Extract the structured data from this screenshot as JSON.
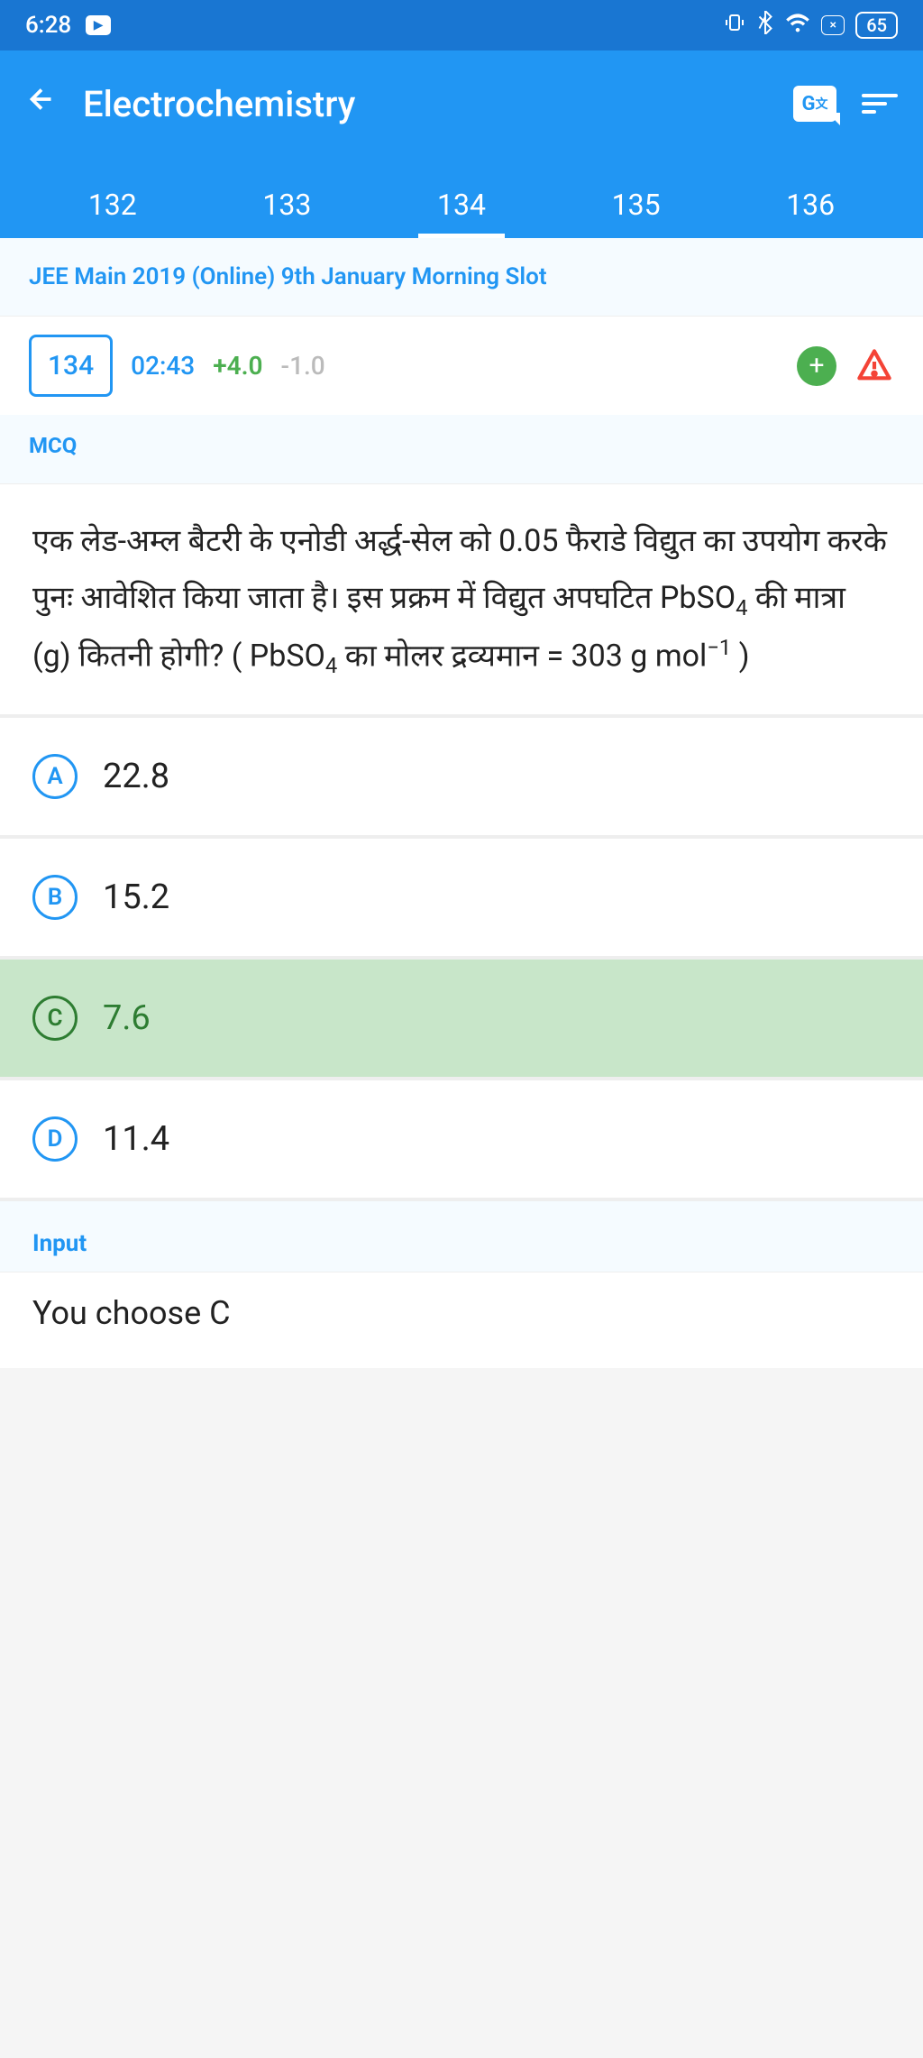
{
  "status": {
    "time": "6:28",
    "battery": "65"
  },
  "header": {
    "title": "Electrochemistry"
  },
  "tabs": {
    "items": [
      "132",
      "133",
      "134",
      "135",
      "136"
    ],
    "active_index": 2
  },
  "exam_info": "JEE Main 2019 (Online) 9th January Morning Slot",
  "question_meta": {
    "number": "134",
    "time": "02:43",
    "positive": "+4.0",
    "negative": "-1.0"
  },
  "mcq_label": "MCQ",
  "question_html": "एक लेड-अम्ल बैटरी के एनोडी अर्द्ध-सेल को 0.05 फैराडे विद्युत का उपयोग करके पुनः आवेशित किया जाता है। इस प्रक्रम में विद्युत अपघटित PbSO<sub>4</sub> की मात्रा (g) कितनी होगी? ( PbSO<sub>4</sub> का मोलर द्रव्यमान = 303 g mol<sup>−1</sup> )",
  "options": [
    {
      "letter": "A",
      "text": "22.8",
      "selected": false
    },
    {
      "letter": "B",
      "text": "15.2",
      "selected": false
    },
    {
      "letter": "C",
      "text": "7.6",
      "selected": true
    },
    {
      "letter": "D",
      "text": "11.4",
      "selected": false
    }
  ],
  "input": {
    "label": "Input",
    "choice_text": "You choose C"
  },
  "colors": {
    "primary": "#2196f3",
    "status_bar": "#1976d2",
    "success": "#4caf50",
    "selected_bg": "#c8e6c9",
    "selected_fg": "#2e7d32",
    "warn": "#f44336"
  }
}
